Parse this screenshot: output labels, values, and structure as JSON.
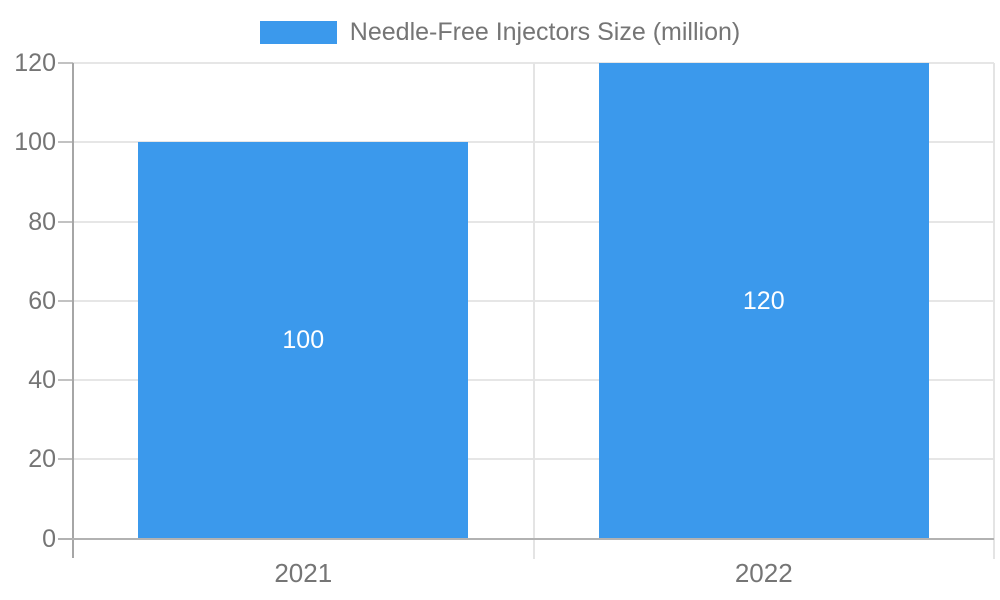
{
  "chart_data": {
    "type": "bar",
    "title": "Needle-Free Injectors Size (million)",
    "categories": [
      "2021",
      "2022"
    ],
    "series": [
      {
        "name": "Needle-Free Injectors Size (million)",
        "values": [
          100,
          120
        ]
      }
    ],
    "bar_labels": [
      "100",
      "120"
    ],
    "xlabel": "",
    "ylabel": "",
    "ylim": [
      0,
      120
    ],
    "yticks": [
      0,
      20,
      40,
      60,
      80,
      100,
      120
    ],
    "grid": "horizontal",
    "legend_position": "top",
    "colors": {
      "bar": "#3b99ec",
      "bar_label_text": "#ffffff",
      "axis_text": "#757575",
      "axis_line": "#a6a6a6",
      "baseline": "#b2b2b2",
      "gridline": "#e6e6e6",
      "tick": "#c2c2c2",
      "boundary_line": "#e4e4e4",
      "background": "#ffffff"
    }
  },
  "legend": {
    "label": "Needle-Free Injectors Size (million)"
  }
}
